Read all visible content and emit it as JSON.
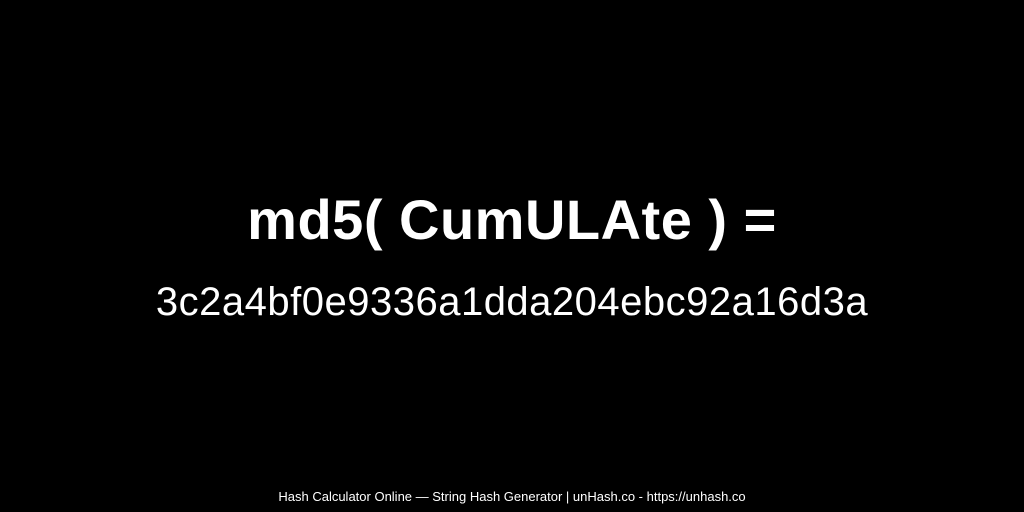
{
  "type": "infographic",
  "background_color": "#000000",
  "text_color": "#ffffff",
  "main": {
    "title_line": "md5( CumULAte ) =",
    "title_fontsize": 56,
    "title_fontweight": "bold",
    "hash_value": "3c2a4bf0e9336a1dda204ebc92a16d3a",
    "hash_fontsize": 40,
    "hash_fontweight": "normal"
  },
  "footer": {
    "text": "Hash Calculator Online — String Hash Generator | unHash.co - https://unhash.co",
    "fontsize": 13
  }
}
